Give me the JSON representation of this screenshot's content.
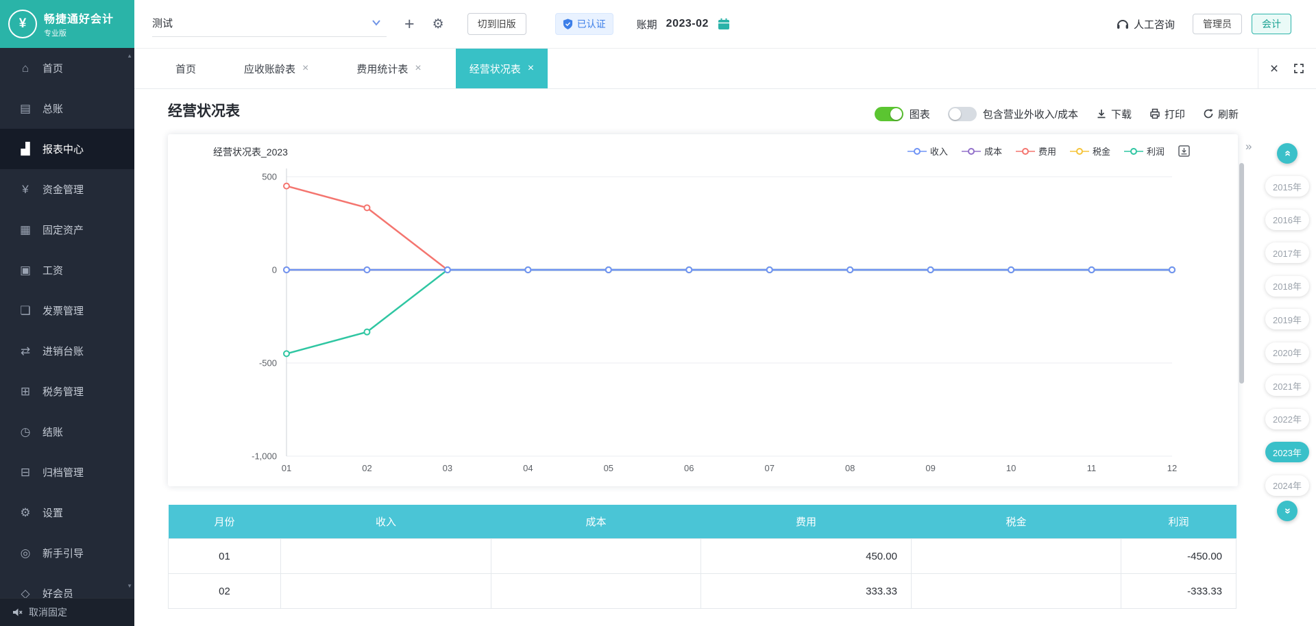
{
  "brand": {
    "name": "畅捷通好会计",
    "edition": "专业版"
  },
  "sidebar": {
    "items": [
      {
        "label": "首页",
        "icon": "home-icon",
        "active": false
      },
      {
        "label": "总账",
        "icon": "ledger-icon",
        "active": false
      },
      {
        "label": "报表中心",
        "icon": "report-chart-icon",
        "active": true
      },
      {
        "label": "资金管理",
        "icon": "funds-icon",
        "active": false
      },
      {
        "label": "固定资产",
        "icon": "fixed-assets-icon",
        "active": false
      },
      {
        "label": "工资",
        "icon": "salary-icon",
        "active": false
      },
      {
        "label": "发票管理",
        "icon": "invoice-icon",
        "active": false
      },
      {
        "label": "进销台账",
        "icon": "purchase-sales-icon",
        "active": false
      },
      {
        "label": "税务管理",
        "icon": "tax-icon",
        "active": false
      },
      {
        "label": "结账",
        "icon": "closing-icon",
        "active": false
      },
      {
        "label": "归档管理",
        "icon": "archive-icon",
        "active": false
      },
      {
        "label": "设置",
        "icon": "settings-icon",
        "active": false
      },
      {
        "label": "新手引导",
        "icon": "guide-icon",
        "active": false
      },
      {
        "label": "好会员",
        "icon": "scale-icon",
        "active": false
      }
    ],
    "unpin_label": "取消固定"
  },
  "topbar": {
    "company_select": "测试",
    "switch_old_label": "切到旧版",
    "certified_label": "已认证",
    "period_label": "账期",
    "period_value": "2023-02",
    "consult_label": "人工咨询",
    "admin_label": "管理员",
    "accountant_label": "会计"
  },
  "tabs": {
    "items": [
      {
        "label": "首页",
        "closable": false,
        "active": false
      },
      {
        "label": "应收账龄表",
        "closable": true,
        "active": false
      },
      {
        "label": "费用统计表",
        "closable": true,
        "active": false
      },
      {
        "label": "经营状况表",
        "closable": true,
        "active": true
      }
    ]
  },
  "page": {
    "title": "经营状况表",
    "toggles": [
      {
        "label": "图表",
        "on": true
      },
      {
        "label": "包含营业外收入/成本",
        "on": false
      }
    ],
    "actions": [
      {
        "label": "下载",
        "icon": "download-icon"
      },
      {
        "label": "打印",
        "icon": "print-icon"
      },
      {
        "label": "刷新",
        "icon": "refresh-icon"
      }
    ]
  },
  "chart_data": {
    "type": "line",
    "title": "经营状况表_2023",
    "x": [
      "01",
      "02",
      "03",
      "04",
      "05",
      "06",
      "07",
      "08",
      "09",
      "10",
      "11",
      "12"
    ],
    "series": [
      {
        "name": "收入",
        "color": "#6f93f5",
        "values": [
          0,
          0,
          0,
          0,
          0,
          0,
          0,
          0,
          0,
          0,
          0,
          0
        ]
      },
      {
        "name": "成本",
        "color": "#9270ca",
        "values": [
          0,
          0,
          0,
          0,
          0,
          0,
          0,
          0,
          0,
          0,
          0,
          0
        ]
      },
      {
        "name": "费用",
        "color": "#f4756f",
        "values": [
          450,
          333.33,
          0,
          0,
          0,
          0,
          0,
          0,
          0,
          0,
          0,
          0
        ]
      },
      {
        "name": "税金",
        "color": "#f5c43a",
        "values": [
          0,
          0,
          0,
          0,
          0,
          0,
          0,
          0,
          0,
          0,
          0,
          0
        ]
      },
      {
        "name": "利润",
        "color": "#2fc6a2",
        "values": [
          -450,
          -333.33,
          0,
          0,
          0,
          0,
          0,
          0,
          0,
          0,
          0,
          0
        ]
      }
    ],
    "ylim": [
      -1000,
      500
    ],
    "yticks": [
      500,
      0,
      -500,
      -1000
    ],
    "ytick_labels": [
      "500",
      "0",
      "-500",
      "-1,000"
    ],
    "grid": true,
    "legend_position": "top-right"
  },
  "years": {
    "items": [
      "2015年",
      "2016年",
      "2017年",
      "2018年",
      "2019年",
      "2020年",
      "2021年",
      "2022年",
      "2023年",
      "2024年"
    ],
    "selected": "2023年"
  },
  "table": {
    "headers": [
      "月份",
      "收入",
      "成本",
      "费用",
      "税金",
      "利润"
    ],
    "rows": [
      [
        "01",
        "",
        "",
        "450.00",
        "",
        "-450.00"
      ],
      [
        "02",
        "",
        "",
        "333.33",
        "",
        "-333.33"
      ]
    ]
  },
  "colors": {
    "brand_teal": "#2ab4a8",
    "tab_active": "#38c1c6",
    "table_header": "#4ac5d6",
    "year_selected": "#3ac0c9",
    "toggle_on": "#5bc531",
    "certified_blue": "#3d7fe8",
    "sidebar_bg": "#232a37"
  }
}
